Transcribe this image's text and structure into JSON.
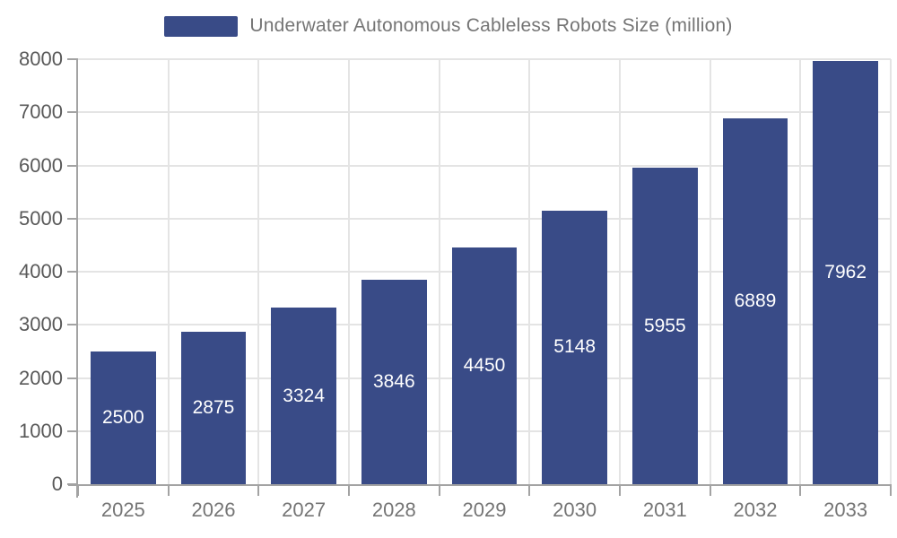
{
  "legend": {
    "label": "Underwater Autonomous Cableless Robots Size (million)"
  },
  "chart_data": {
    "type": "bar",
    "title": "Underwater Autonomous Cableless Robots Size (million)",
    "categories": [
      "2025",
      "2026",
      "2027",
      "2028",
      "2029",
      "2030",
      "2031",
      "2032",
      "2033"
    ],
    "values": [
      2500,
      2875,
      3324,
      3846,
      4450,
      5148,
      5955,
      6889,
      7962
    ],
    "value_labels": [
      "2500",
      "2875",
      "3324",
      "3846",
      "4450",
      "5148",
      "5955",
      "6889",
      "7962"
    ],
    "value_label_position": "inside-center",
    "xlabel": "",
    "ylabel": "",
    "ylim": [
      0,
      8000
    ],
    "ytick_step": 1000,
    "ytick_labels": [
      "0",
      "1000",
      "2000",
      "3000",
      "4000",
      "5000",
      "6000",
      "7000",
      "8000"
    ],
    "grid": true,
    "grid_directions": "horizontal-and-vertical",
    "legend_position": "top-center",
    "colors": {
      "bar": "#394B87",
      "bar_value_label": "#ffffff",
      "legend_text": "#757575",
      "y_tick_label": "#595959",
      "x_tick_label": "#757575",
      "axis_line": "#a3a3a3",
      "gridline": "#e4e4e4",
      "background": "#ffffff"
    }
  }
}
